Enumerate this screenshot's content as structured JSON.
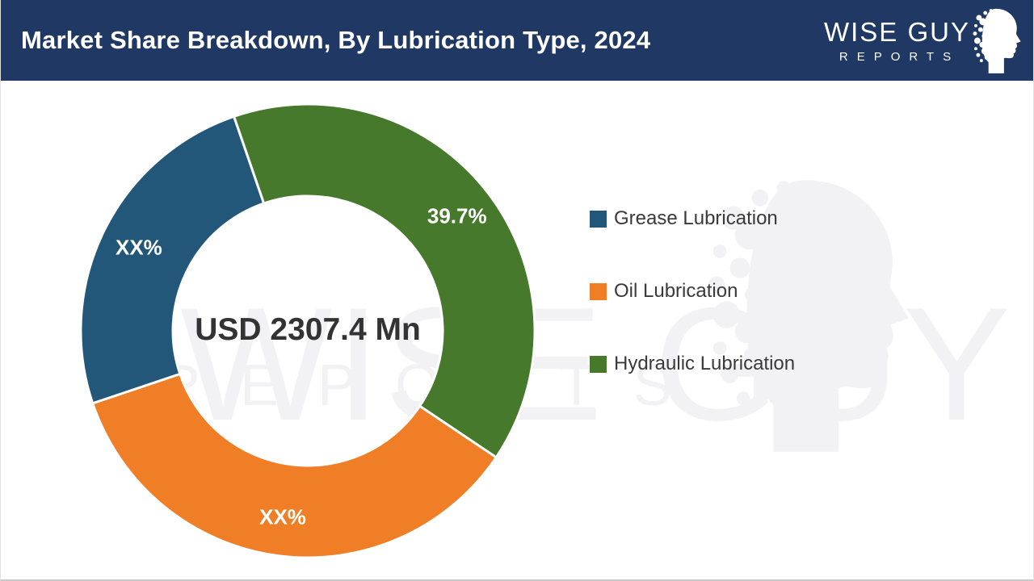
{
  "header": {
    "title": "Market Share Breakdown, By Lubrication Type, 2024",
    "logo": {
      "line1": "WISE GUY",
      "line2": "REPORTS"
    }
  },
  "watermark": {
    "line1": "WISE GUY",
    "line2": "REPORTS"
  },
  "chart_data": {
    "type": "pie",
    "subtype": "donut",
    "title": "Market Share Breakdown, By Lubrication Type, 2024",
    "center_label": "USD 2307.4 Mn",
    "start_angle_deg": 341,
    "slices": [
      {
        "label": "Hydraulic Lubrication",
        "display_label": "39.7%",
        "value_pct": 39.7,
        "color": "#46792C"
      },
      {
        "label": "Oil Lubrication",
        "display_label": "XX%",
        "value_pct": 35.4,
        "color": "#F07E26"
      },
      {
        "label": "Grease Lubrication",
        "display_label": "XX%",
        "value_pct": 24.9,
        "color": "#22577A"
      }
    ],
    "legend_position": "right"
  },
  "legend": {
    "items": [
      {
        "label": "Grease Lubrication",
        "color": "#22577A"
      },
      {
        "label": "Oil Lubrication",
        "color": "#F07E26"
      },
      {
        "label": "Hydraulic Lubrication",
        "color": "#46792C"
      }
    ]
  },
  "colors": {
    "header_bg": "#1F3864",
    "page_bg": "#FFFFFF",
    "watermark": "#F2F2F4",
    "center_text": "#333333",
    "slice_label_text": "#FFFFFF",
    "legend_text": "#3A3A3A"
  }
}
